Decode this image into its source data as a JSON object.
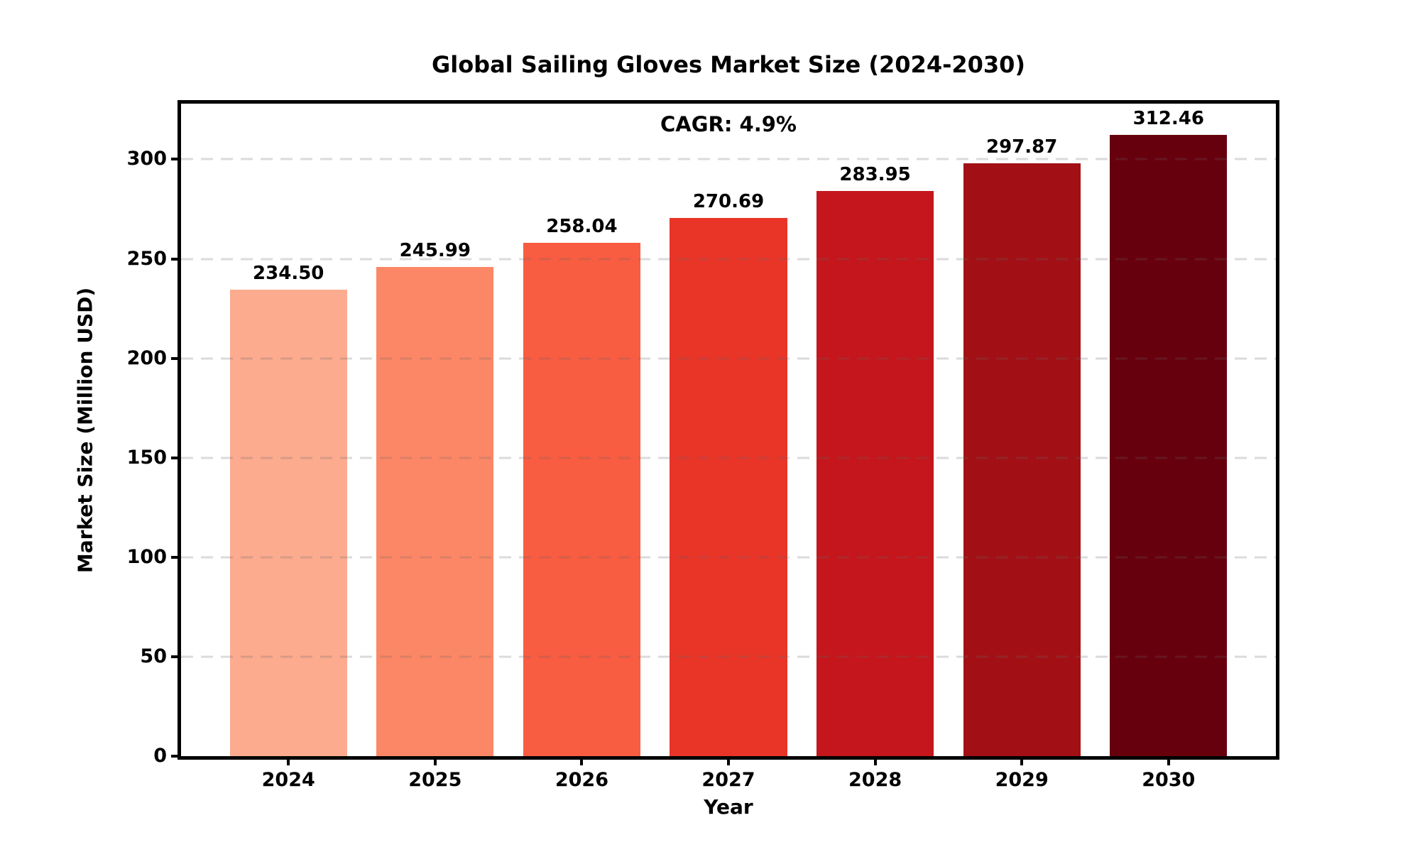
{
  "chart_data": {
    "type": "bar",
    "title": "Global Sailing Gloves Market Size (2024-2030)",
    "xlabel": "Year",
    "ylabel": "Market Size (Million USD)",
    "annotation": "CAGR: 4.9%",
    "categories": [
      "2024",
      "2025",
      "2026",
      "2027",
      "2028",
      "2029",
      "2030"
    ],
    "values": [
      234.5,
      245.99,
      258.04,
      270.69,
      283.95,
      297.87,
      312.46
    ],
    "value_labels": [
      "234.50",
      "245.99",
      "258.04",
      "270.69",
      "283.95",
      "297.87",
      "312.46"
    ],
    "bar_colors": [
      "#fcab8f",
      "#fc8766",
      "#f85c41",
      "#e93428",
      "#c4161c",
      "#a21015",
      "#67000d"
    ],
    "ylim": [
      0,
      328
    ],
    "yticks": [
      0,
      50,
      100,
      150,
      200,
      250,
      300
    ],
    "xlim": [
      -0.732,
      6.732
    ],
    "bar_width": 0.8,
    "grid": "y-axis dashed, drawn above bars",
    "legend": "none",
    "colors": {
      "background": "#ffffff",
      "axes_spines": "#000000",
      "text": "#000000",
      "gridline": "rgba(100,100,100,0.23)"
    }
  }
}
